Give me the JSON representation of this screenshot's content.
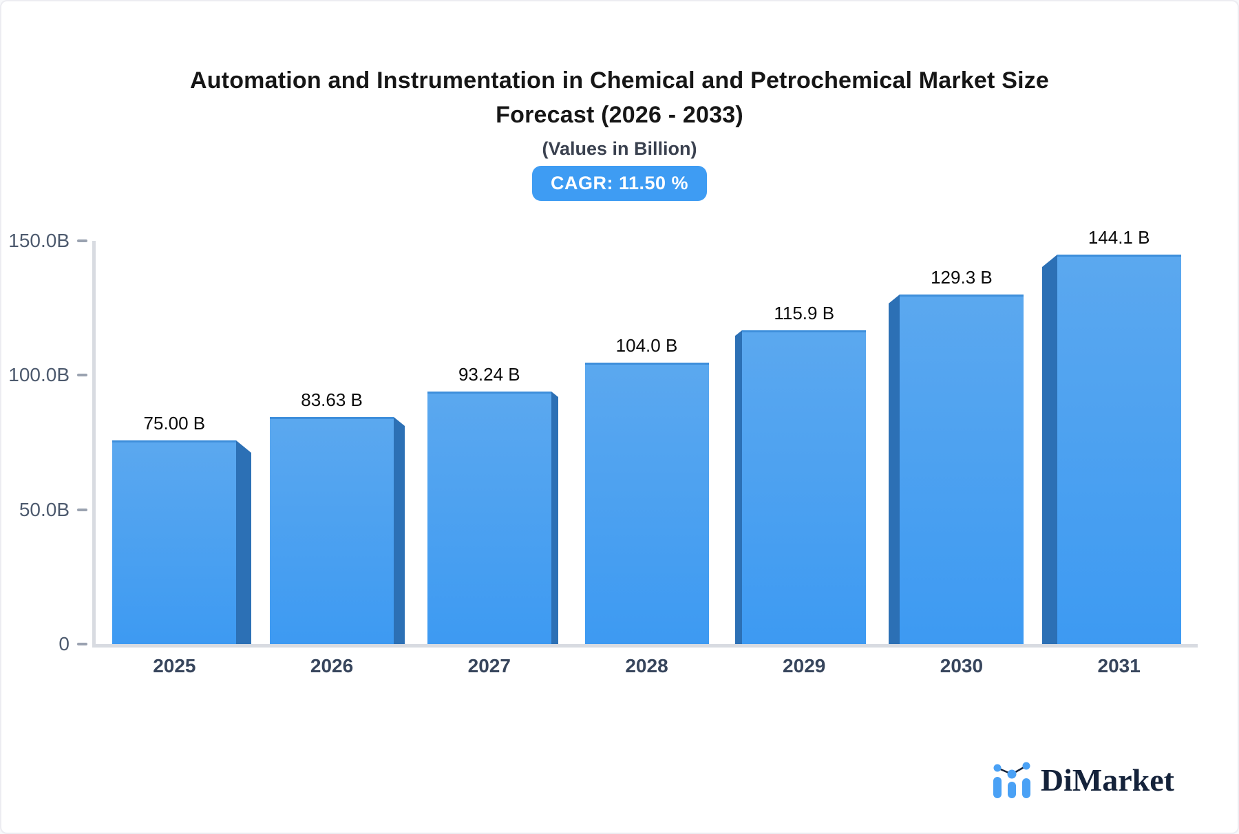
{
  "header": {
    "title_lines": [
      "Automation and Instrumentation in Chemical and Petrochemical Market Size",
      "Forecast (2026 - 2033)"
    ],
    "subtitle": "(Values in Billion)",
    "cagr_badge": "CAGR: 11.50 %"
  },
  "chart_data": {
    "type": "bar",
    "title": "Automation and Instrumentation in Chemical and Petrochemical Market Size Forecast (2026 - 2033)",
    "subtitle": "(Values in Billion)",
    "cagr_percent": 11.5,
    "categories": [
      "2025",
      "2026",
      "2027",
      "2028",
      "2029",
      "2030",
      "2031"
    ],
    "values": [
      75.0,
      83.63,
      93.24,
      104.0,
      115.9,
      129.3,
      144.1
    ],
    "value_labels": [
      "75.00 B",
      "83.63 B",
      "93.24 B",
      "104.0 B",
      "115.9 B",
      "129.3 B",
      "144.1 B"
    ],
    "xlabel": "",
    "ylabel": "",
    "ylim": [
      0,
      150
    ],
    "y_ticks": [
      {
        "label": "0",
        "value": 0
      },
      {
        "label": "50.0B",
        "value": 50
      },
      {
        "label": "100.0B",
        "value": 100
      },
      {
        "label": "150.0B",
        "value": 150
      }
    ],
    "grid": false,
    "legend": false
  },
  "logo": {
    "text": "DiMarket",
    "icon": "bar-line-chart-icon"
  },
  "colors": {
    "bar_fill_top": "#5BA8EF",
    "bar_fill_bottom": "#3D9AF2",
    "bar_side": "#2C70B5",
    "bar_top_edge": "#3E8FDB",
    "badge_bg": "#3E9CF3",
    "axis": "#D8DBE1",
    "tick": "#9AA2B0",
    "logo_blue": "#4AA1F5",
    "logo_navy": "#14223A"
  }
}
